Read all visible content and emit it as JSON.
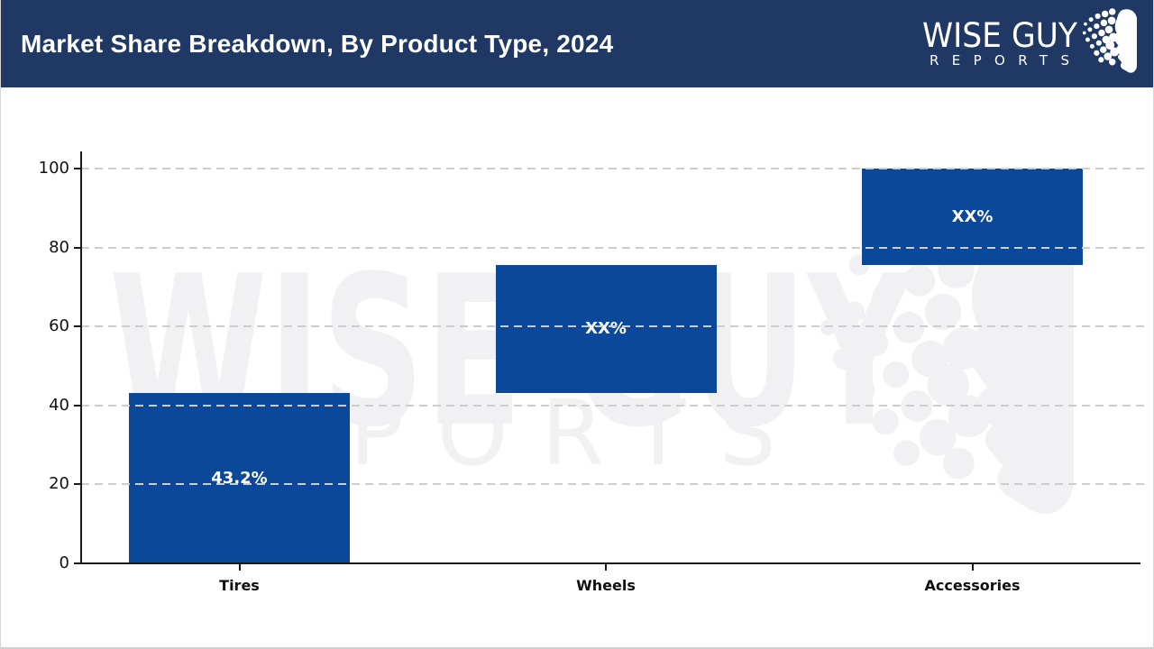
{
  "header": {
    "title": "Market Share Breakdown, By Product Type, 2024",
    "logo": {
      "line1": "WISE GUY",
      "line2": "REPORTS"
    }
  },
  "watermark": {
    "line1": "WISE GUY",
    "line2": "REPORTS"
  },
  "chart_data": {
    "type": "bar",
    "variant": "waterfall-segment-bars",
    "title": "Market Share Breakdown, By Product Type, 2024",
    "categories": [
      "Tires",
      "Wheels",
      "Accessories"
    ],
    "segments": [
      {
        "category": "Tires",
        "start": 0,
        "end": 43.2,
        "label": "43.2%"
      },
      {
        "category": "Wheels",
        "start": 43.2,
        "end": 75.6,
        "label": "XX%"
      },
      {
        "category": "Accessories",
        "start": 75.6,
        "end": 100,
        "label": "XX%"
      }
    ],
    "yticks": [
      0,
      20,
      40,
      60,
      80,
      100
    ],
    "ylim": [
      0,
      105
    ],
    "xlabel": "",
    "ylabel": "",
    "legend": "none",
    "grid": "horizontal-dashed",
    "colors": {
      "bar": "#0c4899",
      "bar_label": "#ffffff",
      "grid": "#cdcdcd",
      "axis": "#1a1a1a",
      "header_bg": "#203864",
      "watermark": "#f1f1f4"
    }
  }
}
